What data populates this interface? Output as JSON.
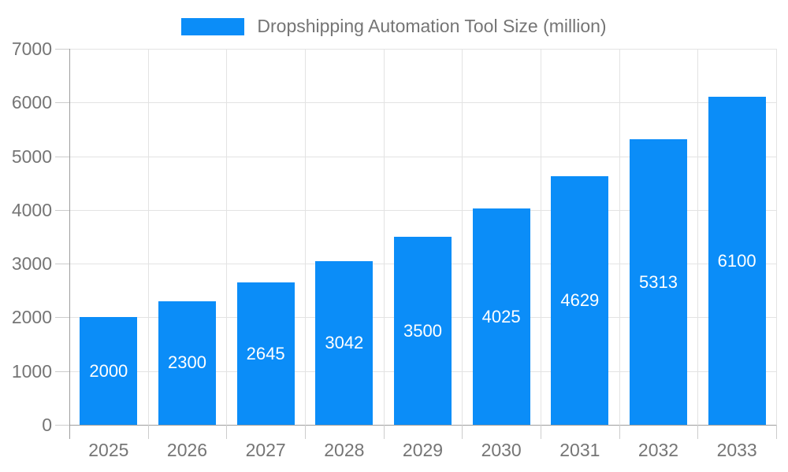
{
  "legend": {
    "series_label": "Dropshipping Automation Tool Size (million)"
  },
  "chart_data": {
    "type": "bar",
    "title": "Dropshipping Automation Tool Size (million)",
    "categories": [
      "2025",
      "2026",
      "2027",
      "2028",
      "2029",
      "2030",
      "2031",
      "2032",
      "2033"
    ],
    "values": [
      2000,
      2300,
      2645,
      3042,
      3500,
      4025,
      4629,
      5313,
      6100
    ],
    "xlabel": "",
    "ylabel": "",
    "ylim": [
      0,
      7000
    ],
    "yticks": [
      0,
      1000,
      2000,
      3000,
      4000,
      5000,
      6000,
      7000
    ],
    "grid": true,
    "legend_position": "top",
    "bar_labels_visible": true,
    "colors": {
      "bar": "#0b8df8",
      "bar_label": "#ffffff",
      "axis_text": "#757575",
      "gridline": "#e3e3e3",
      "axis_line": "#9e9e9e",
      "tick": "#cccccc",
      "background": "#ffffff"
    }
  }
}
